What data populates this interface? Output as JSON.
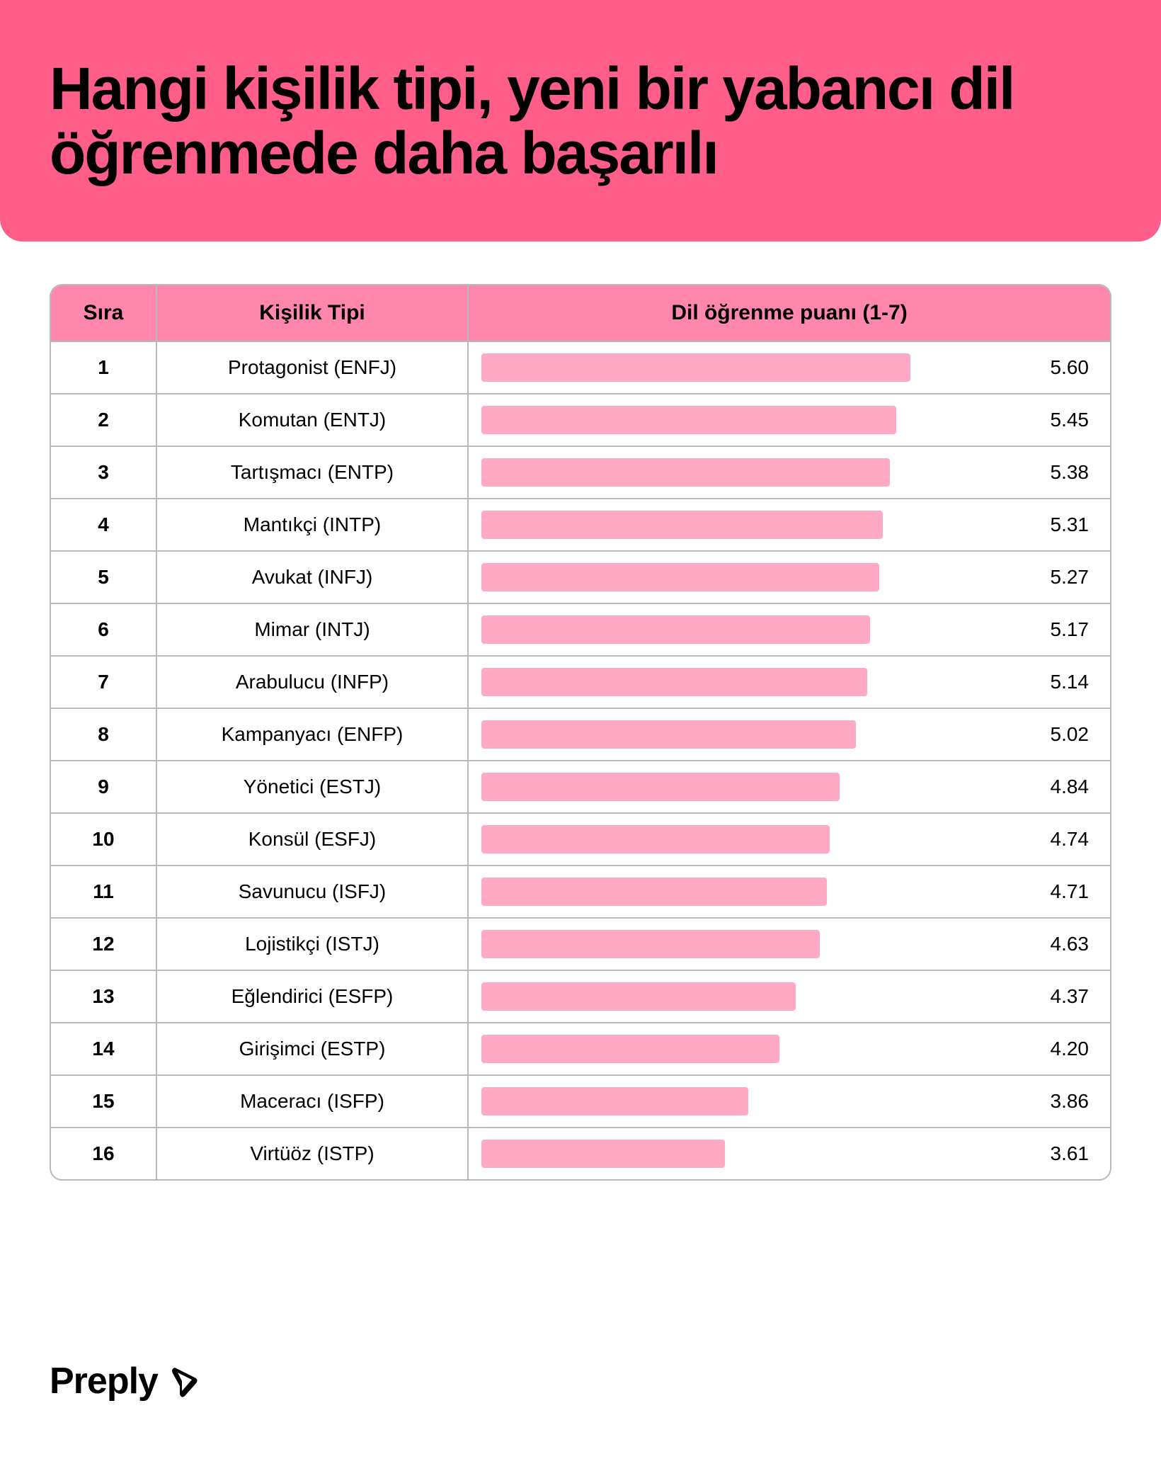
{
  "banner": {
    "title": "Hangi kişilik tipi, yeni bir yabancı dil öğrenmede daha başarılı",
    "background_color": "#ff5e8a",
    "title_color": "#000000"
  },
  "table": {
    "border_color": "#b9b9b9",
    "header_row_bg": "#ff86ad",
    "bar_color": "#ffa9c5",
    "columns": {
      "rank": "Sıra",
      "type": "Kişilik Tipi",
      "score": "Dil öğrenme puanı (1-7)"
    },
    "score_min": 1,
    "score_max": 7,
    "rows": [
      {
        "rank": "1",
        "type": "Protagonist (ENFJ)",
        "score": "5.60",
        "score_num": 5.6
      },
      {
        "rank": "2",
        "type": "Komutan (ENTJ)",
        "score": "5.45",
        "score_num": 5.45
      },
      {
        "rank": "3",
        "type": "Tartışmacı (ENTP)",
        "score": "5.38",
        "score_num": 5.38
      },
      {
        "rank": "4",
        "type": "Mantıkçi (INTP)",
        "score": "5.31",
        "score_num": 5.31
      },
      {
        "rank": "5",
        "type": "Avukat (INFJ)",
        "score": "5.27",
        "score_num": 5.27
      },
      {
        "rank": "6",
        "type": "Mimar (INTJ)",
        "score": "5.17",
        "score_num": 5.17
      },
      {
        "rank": "7",
        "type": "Arabulucu (INFP)",
        "score": "5.14",
        "score_num": 5.14
      },
      {
        "rank": "8",
        "type": "Kampanyacı (ENFP)",
        "score": "5.02",
        "score_num": 5.02
      },
      {
        "rank": "9",
        "type": "Yönetici (ESTJ)",
        "score": "4.84",
        "score_num": 4.84
      },
      {
        "rank": "10",
        "type": "Konsül (ESFJ)",
        "score": "4.74",
        "score_num": 4.74
      },
      {
        "rank": "11",
        "type": "Savunucu (ISFJ)",
        "score": "4.71",
        "score_num": 4.71
      },
      {
        "rank": "12",
        "type": "Lojistikçi (ISTJ)",
        "score": "4.63",
        "score_num": 4.63
      },
      {
        "rank": "13",
        "type": "Eğlendirici (ESFP)",
        "score": "4.37",
        "score_num": 4.37
      },
      {
        "rank": "14",
        "type": "Girişimci (ESTP)",
        "score": "4.20",
        "score_num": 4.2
      },
      {
        "rank": "15",
        "type": "Maceracı (ISFP)",
        "score": "3.86",
        "score_num": 3.86
      },
      {
        "rank": "16",
        "type": "Virtüöz (ISTP)",
        "score": "3.61",
        "score_num": 3.61
      }
    ]
  },
  "footer": {
    "brand": "Preply",
    "icon_color": "#000000"
  }
}
